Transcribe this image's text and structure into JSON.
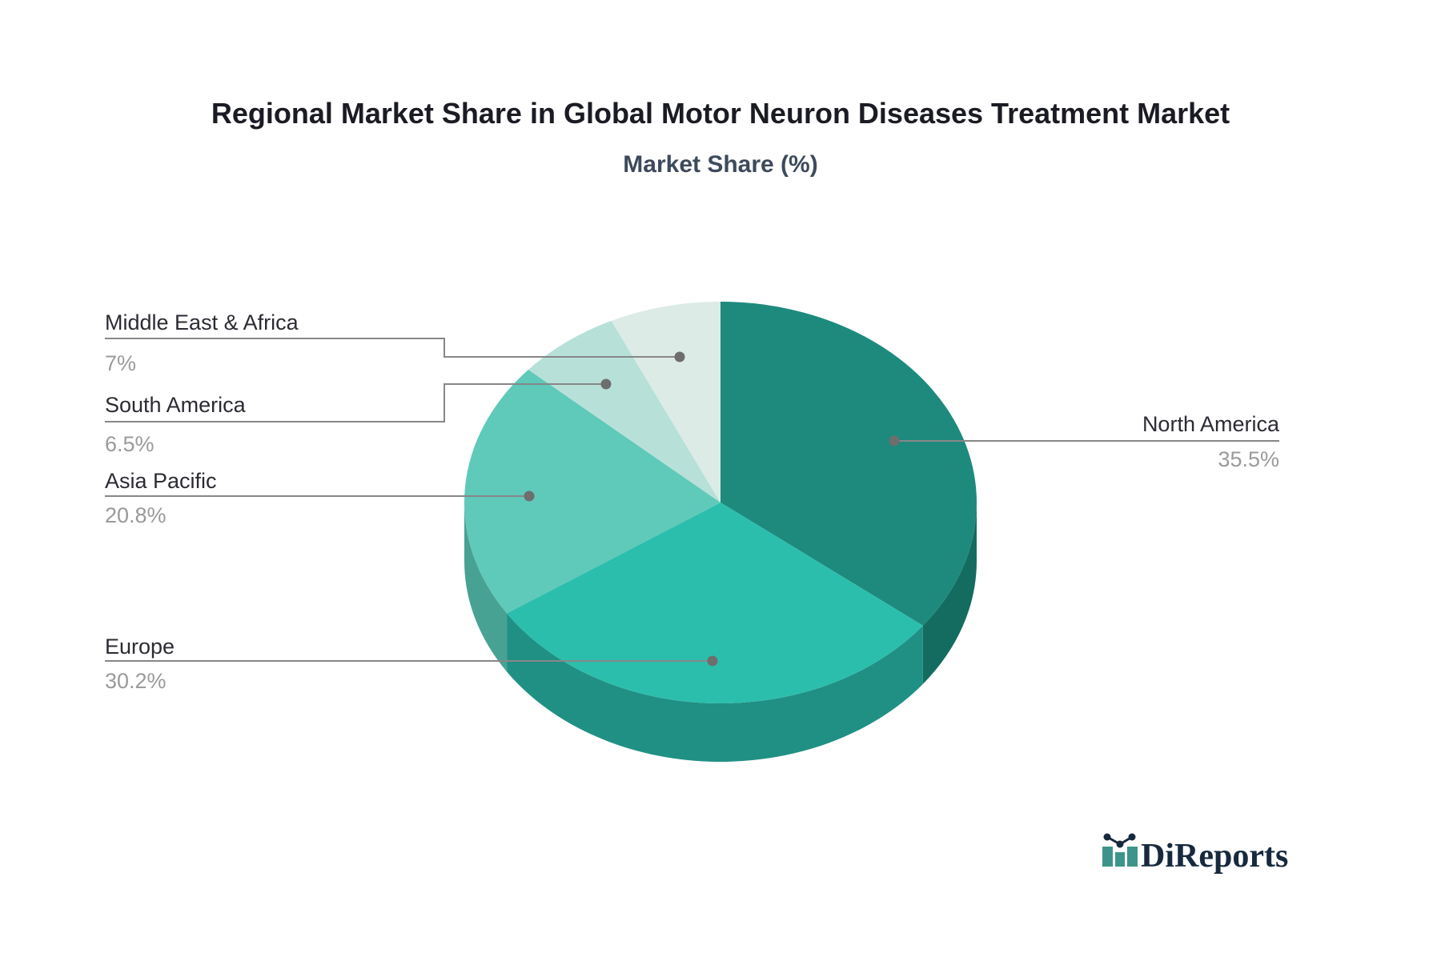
{
  "title": "Regional Market Share in Global Motor Neuron Diseases Treatment Market",
  "subtitle": "Market Share (%)",
  "logo": {
    "text": "DiReports"
  },
  "chart_data": {
    "type": "pie",
    "title": "Regional Market Share in Global Motor Neuron Diseases Treatment Market",
    "subtitle": "Market Share (%)",
    "style": "3d-extruded-pie",
    "start_angle": "12-o-clock",
    "direction": "clockwise",
    "legend_position": "none",
    "total": 100,
    "series": [
      {
        "name": "North America",
        "value": 35.5,
        "label": "35.5%",
        "color_top": "#1e8a7e",
        "color_side": "#146c60"
      },
      {
        "name": "Europe",
        "value": 30.2,
        "label": "30.2%",
        "color_top": "#2cbead",
        "color_side": "#209084"
      },
      {
        "name": "Asia Pacific",
        "value": 20.8,
        "label": "20.8%",
        "color_top": "#5fc9ba",
        "color_side": "#48a294"
      },
      {
        "name": "South America",
        "value": 6.5,
        "label": "6.5%",
        "color_top": "#b7e1d8",
        "color_side": "#8fc4b9"
      },
      {
        "name": "Middle East & Africa",
        "value": 7,
        "label": "7%",
        "color_top": "#ddebe7",
        "color_side": "#b5cec8"
      }
    ],
    "callout_line_color": "#878787",
    "callout_dot_color": "#6e6e6e",
    "label_name_color": "#2b2b33",
    "label_value_color": "#9a9a9a"
  }
}
